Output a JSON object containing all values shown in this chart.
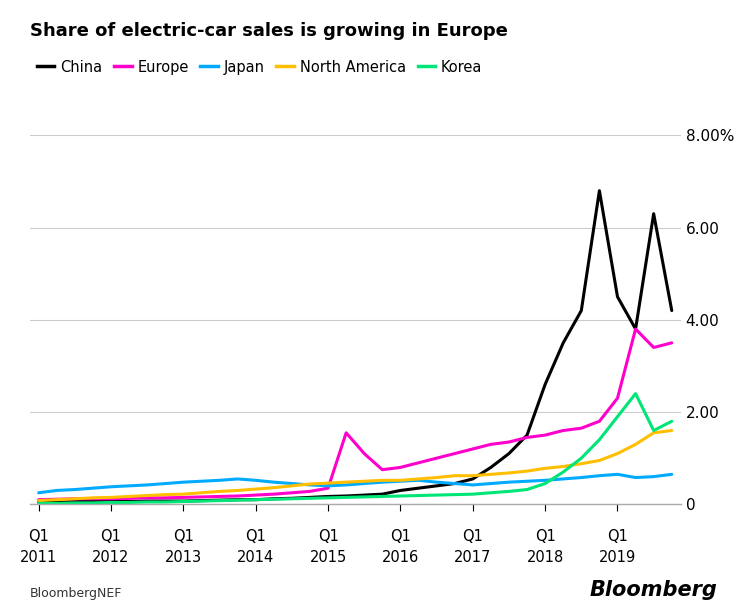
{
  "title": "Share of electric-car sales is growing in Europe",
  "series_order": [
    "China",
    "Europe",
    "Japan",
    "North America",
    "Korea"
  ],
  "colors": {
    "China": "#000000",
    "Europe": "#ff00cc",
    "Japan": "#00aaff",
    "North America": "#ffbf00",
    "Korea": "#00e676"
  },
  "china": [
    0.05,
    0.05,
    0.06,
    0.06,
    0.06,
    0.06,
    0.07,
    0.07,
    0.07,
    0.08,
    0.09,
    0.1,
    0.1,
    0.12,
    0.13,
    0.15,
    0.17,
    0.18,
    0.2,
    0.22,
    0.3,
    0.35,
    0.4,
    0.45,
    0.55,
    0.8,
    1.1,
    1.5,
    2.6,
    3.5,
    4.2,
    6.8,
    4.5,
    3.8,
    6.3,
    4.2
  ],
  "europe": [
    0.1,
    0.11,
    0.12,
    0.12,
    0.12,
    0.13,
    0.14,
    0.14,
    0.15,
    0.16,
    0.17,
    0.18,
    0.2,
    0.22,
    0.25,
    0.28,
    0.35,
    1.55,
    1.1,
    0.75,
    0.8,
    0.9,
    1.0,
    1.1,
    1.2,
    1.3,
    1.35,
    1.45,
    1.5,
    1.6,
    1.65,
    1.8,
    2.3,
    3.8,
    3.4,
    3.5
  ],
  "japan": [
    0.25,
    0.3,
    0.32,
    0.35,
    0.38,
    0.4,
    0.42,
    0.45,
    0.48,
    0.5,
    0.52,
    0.55,
    0.52,
    0.48,
    0.45,
    0.42,
    0.4,
    0.42,
    0.45,
    0.48,
    0.5,
    0.52,
    0.48,
    0.45,
    0.42,
    0.45,
    0.48,
    0.5,
    0.52,
    0.55,
    0.58,
    0.62,
    0.65,
    0.58,
    0.6,
    0.65
  ],
  "north_america": [
    0.08,
    0.1,
    0.12,
    0.14,
    0.15,
    0.17,
    0.19,
    0.21,
    0.22,
    0.25,
    0.28,
    0.3,
    0.33,
    0.36,
    0.4,
    0.44,
    0.46,
    0.48,
    0.5,
    0.52,
    0.52,
    0.55,
    0.58,
    0.62,
    0.62,
    0.65,
    0.68,
    0.72,
    0.78,
    0.82,
    0.88,
    0.95,
    1.1,
    1.3,
    1.55,
    1.6
  ],
  "korea": [
    0.02,
    0.02,
    0.03,
    0.03,
    0.04,
    0.04,
    0.05,
    0.05,
    0.06,
    0.07,
    0.08,
    0.09,
    0.1,
    0.11,
    0.12,
    0.13,
    0.14,
    0.15,
    0.16,
    0.17,
    0.18,
    0.19,
    0.2,
    0.21,
    0.22,
    0.25,
    0.28,
    0.32,
    0.45,
    0.7,
    1.0,
    1.4,
    1.9,
    2.4,
    1.6,
    1.8
  ],
  "ylim": [
    0,
    8.0
  ],
  "yticks": [
    0,
    2.0,
    4.0,
    6.0,
    8.0
  ],
  "ytick_labels": [
    "0",
    "2.00",
    "4.00",
    "6.00",
    "8.00%"
  ],
  "xtick_years": [
    2011,
    2012,
    2013,
    2014,
    2015,
    2016,
    2017,
    2018,
    2019
  ],
  "background_color": "#ffffff",
  "grid_color": "#cccccc",
  "footer_left": "BloombergNEF",
  "footer_right": "Bloomberg"
}
